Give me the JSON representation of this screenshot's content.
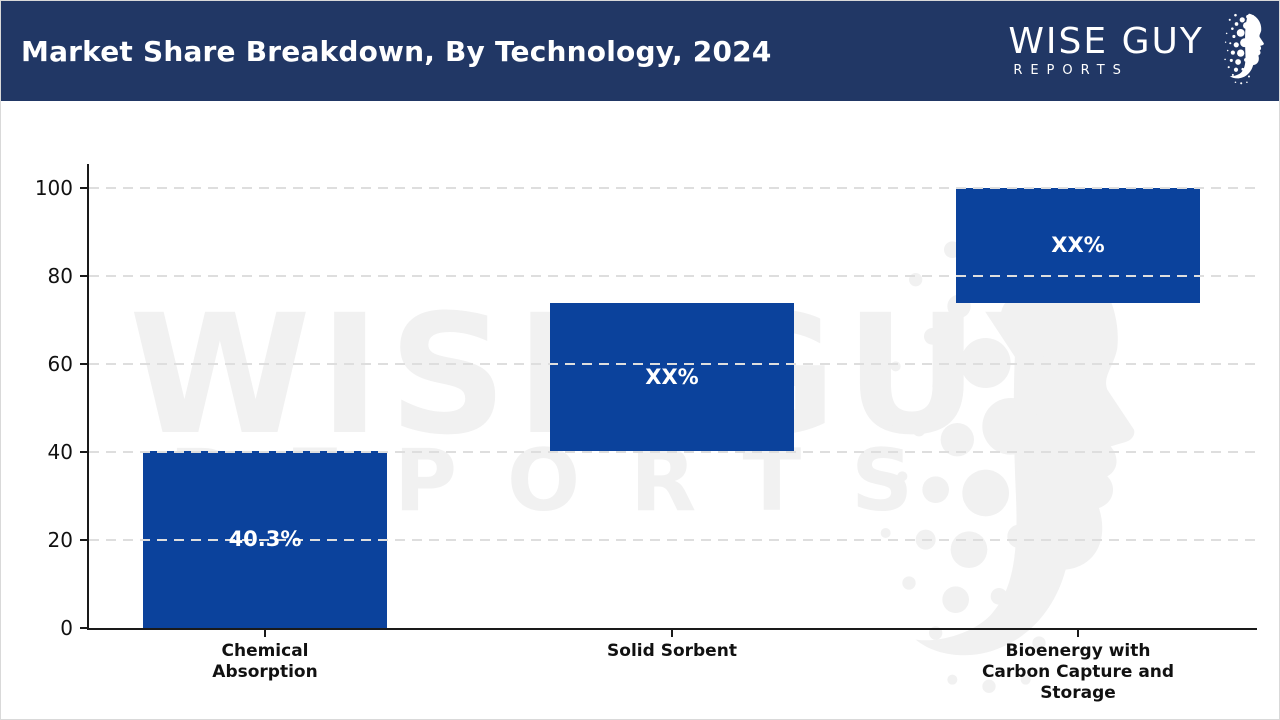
{
  "header": {
    "title": "Market Share Breakdown, By Technology, 2024",
    "logo": {
      "line1": "WISE GUY",
      "line2": "REPORTS"
    }
  },
  "watermark": {
    "line1": "WISE GUY",
    "line2": "REPORTS"
  },
  "colors": {
    "header_bg": "#213765",
    "bar": "#0b429c",
    "grid": "#dedede",
    "axis": "#1a1a1a",
    "watermark": "#f1f1f1"
  },
  "chart_data": {
    "type": "bar",
    "subtype": "waterfall",
    "title": "Market Share Breakdown, By Technology, 2024",
    "xlabel": "",
    "ylabel": "",
    "categories": [
      [
        "Chemical",
        "Absorption"
      ],
      [
        "Solid Sorbent"
      ],
      [
        "Bioenergy with",
        "Carbon Capture and",
        "Storage"
      ]
    ],
    "segments": [
      {
        "start": 0,
        "end": 40.3,
        "label": "40.3%"
      },
      {
        "start": 40.3,
        "end": 74,
        "label": "XX%"
      },
      {
        "start": 74,
        "end": 100,
        "label": "XX%"
      }
    ],
    "yticks": [
      0,
      20,
      40,
      60,
      80,
      100
    ],
    "ylim": [
      0,
      105.5
    ],
    "grid": "horizontal-dashed",
    "legend": "none",
    "bar_color": "#0b429c"
  }
}
